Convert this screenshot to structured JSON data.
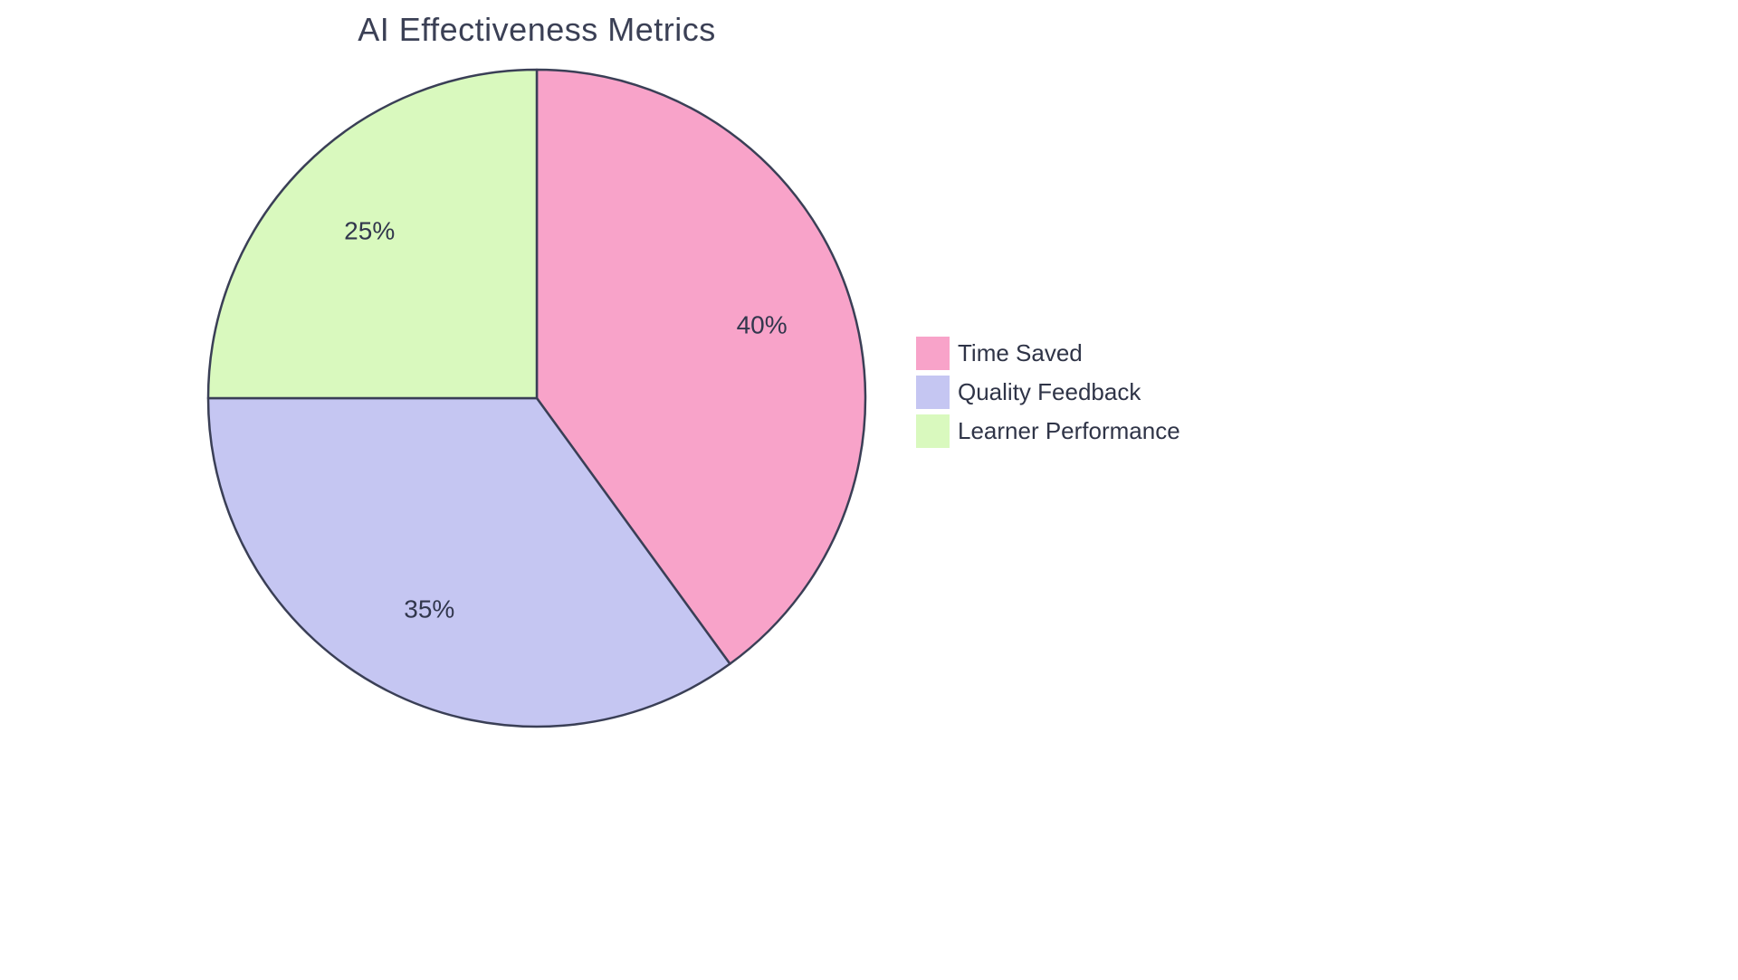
{
  "chart_data": {
    "type": "pie",
    "title": "AI Effectiveness Metrics",
    "labels": [
      "Time Saved",
      "Quality Feedback",
      "Learner Performance"
    ],
    "values": [
      40,
      35,
      25
    ],
    "slice_labels": [
      "40%",
      "35%",
      "25%"
    ],
    "colors": [
      "#F8A3C9",
      "#C5C6F2",
      "#D9F9BE"
    ],
    "stroke_color": "#3A3F56",
    "label_color": "#32374D",
    "legend_position": "right",
    "start_angle_deg": -90,
    "direction": "clockwise"
  }
}
